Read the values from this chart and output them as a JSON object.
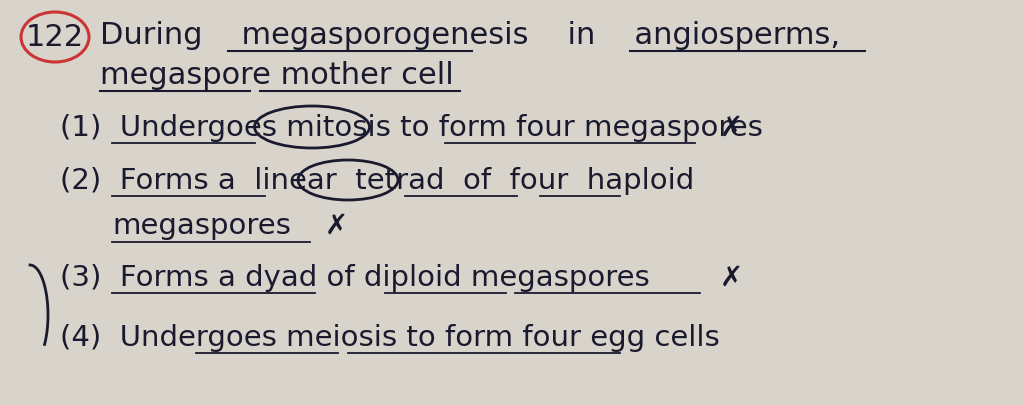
{
  "bg_color": "#d8d4cc",
  "font_color": "#1a1a2e",
  "q_num": "122",
  "q_circle_color": "#cc3333",
  "line1": "During    megasporogenesis    in    angiosperms,",
  "line2": "megaspore mother cell",
  "opt1": "(1)  Undergoes mitosis to form four megaspores",
  "opt2": "(2)  Forms a  linear  tetrad  of  four  haploid",
  "opt2b": "megaspores",
  "opt3": "(3)  Forms a dyad of diploid megaspores",
  "opt4": "(4)  Undergoes meiosis to form four egg cells",
  "font_size_title": 22,
  "font_size_opt": 21
}
